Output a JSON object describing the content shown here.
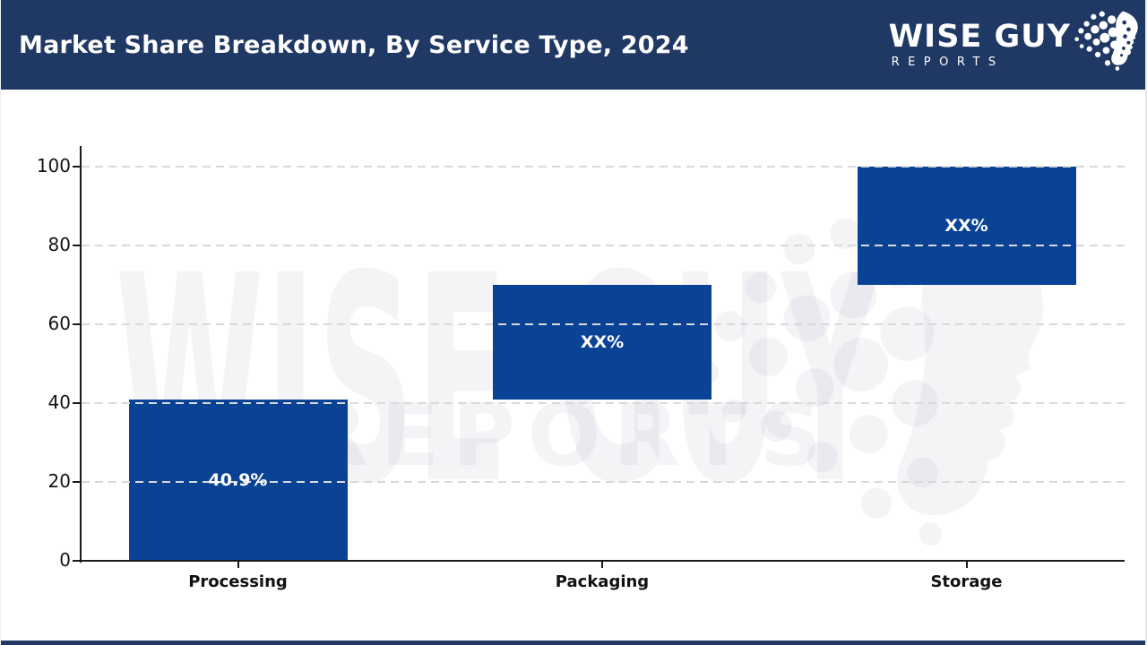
{
  "header": {
    "title": "Market Share Breakdown, By Service Type, 2024",
    "bg_color": "#1f3864",
    "logo": {
      "line1": "WISE GUY",
      "line2": "REPORTS"
    }
  },
  "watermark": {
    "line1": "WISE GUY",
    "line2": "REPORTS"
  },
  "chart_data": {
    "type": "bar",
    "subtype": "waterfall-stacked-segments",
    "title": "Market Share Breakdown, By Service Type, 2024",
    "categories": [
      "Processing",
      "Packaging",
      "Storage"
    ],
    "bar_ranges": [
      [
        0,
        40.9
      ],
      [
        40.9,
        70
      ],
      [
        70,
        100
      ]
    ],
    "values": [
      40.9,
      29.1,
      30.0
    ],
    "bar_labels": [
      "40.9%",
      "XX%",
      "XX%"
    ],
    "yticks": [
      0,
      20,
      40,
      60,
      80,
      100
    ],
    "ylim": [
      0,
      105
    ],
    "xlabel": "",
    "ylabel": "",
    "grid": "dashed-horizontal-over-bars",
    "legend": "none",
    "bar_color": "#0a4296",
    "label_color": "#ffffff",
    "axis_color": "#1a1a1a",
    "grid_color": "#d9d9d9"
  }
}
